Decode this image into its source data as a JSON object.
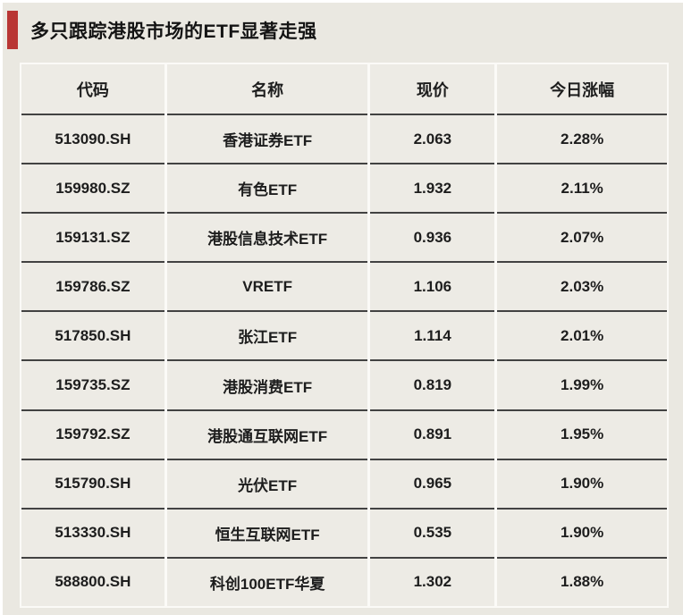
{
  "title": "多只跟踪港股市场的ETF显著走强",
  "colors": {
    "accent": "#b93634",
    "page_background": "#eae8e1",
    "cell_background": "#edebe5",
    "row_separator": "#424242",
    "column_separator": "#fbfaf7"
  },
  "table": {
    "headers": [
      "代码",
      "名称",
      "现价",
      "今日涨幅"
    ],
    "rows": [
      {
        "code": "513090.SH",
        "name": "香港证券ETF",
        "price": "2.063",
        "change": "2.28%"
      },
      {
        "code": "159980.SZ",
        "name": "有色ETF",
        "price": "1.932",
        "change": "2.11%"
      },
      {
        "code": "159131.SZ",
        "name": "港股信息技术ETF",
        "price": "0.936",
        "change": "2.07%"
      },
      {
        "code": "159786.SZ",
        "name": "VRETF",
        "price": "1.106",
        "change": "2.03%"
      },
      {
        "code": "517850.SH",
        "name": "张江ETF",
        "price": "1.114",
        "change": "2.01%"
      },
      {
        "code": "159735.SZ",
        "name": "港股消费ETF",
        "price": "0.819",
        "change": "1.99%"
      },
      {
        "code": "159792.SZ",
        "name": "港股通互联网ETF",
        "price": "0.891",
        "change": "1.95%"
      },
      {
        "code": "515790.SH",
        "name": "光伏ETF",
        "price": "0.965",
        "change": "1.90%"
      },
      {
        "code": "513330.SH",
        "name": "恒生互联网ETF",
        "price": "0.535",
        "change": "1.90%"
      },
      {
        "code": "588800.SH",
        "name": "科创100ETF华夏",
        "price": "1.302",
        "change": "1.88%"
      }
    ]
  },
  "chart_data": {
    "type": "table",
    "title": "多只跟踪港股市场的ETF显著走强",
    "columns": [
      "代码",
      "名称",
      "现价",
      "今日涨幅"
    ],
    "categories": [
      "香港证券ETF",
      "有色ETF",
      "港股信息技术ETF",
      "VRETF",
      "张江ETF",
      "港股消费ETF",
      "港股通互联网ETF",
      "光伏ETF",
      "恒生互联网ETF",
      "科创100ETF华夏"
    ],
    "codes": [
      "513090.SH",
      "159980.SZ",
      "159131.SZ",
      "159786.SZ",
      "517850.SH",
      "159735.SZ",
      "159792.SZ",
      "515790.SH",
      "513330.SH",
      "588800.SH"
    ],
    "series": [
      {
        "name": "现价",
        "values": [
          2.063,
          1.932,
          0.936,
          1.106,
          1.114,
          0.819,
          0.891,
          0.965,
          0.535,
          1.302
        ]
      },
      {
        "name": "今日涨幅(%)",
        "values": [
          2.28,
          2.11,
          2.07,
          2.03,
          2.01,
          1.99,
          1.95,
          1.9,
          1.9,
          1.88
        ]
      }
    ]
  }
}
